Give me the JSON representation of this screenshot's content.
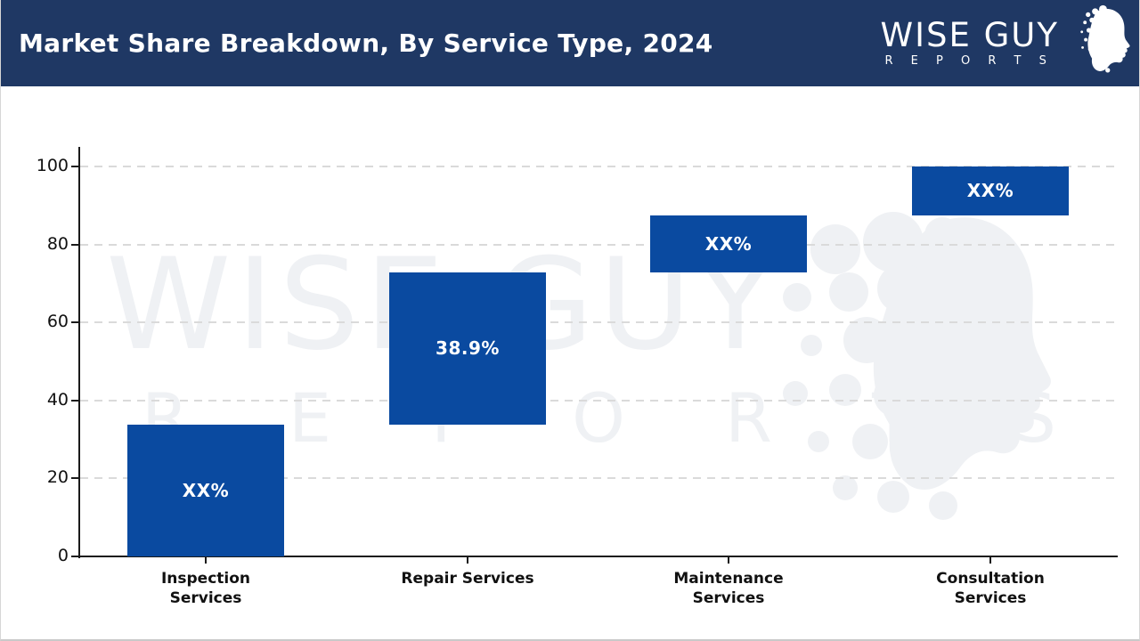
{
  "header": {
    "title": "Market Share Breakdown, By Service Type, 2024",
    "logo": {
      "wordmark": "WISE GUY",
      "subtitle": "R E P O R T S"
    }
  },
  "watermark": {
    "wordmark": "WISE GUY",
    "subtitle": "R E P O R T S"
  },
  "chart_data": {
    "type": "bar",
    "subtype": "waterfall",
    "title": "Market Share Breakdown, By Service Type, 2024",
    "unit": "%",
    "categories": [
      "Inspection Services",
      "Repair Services",
      "Maintenance Services",
      "Consultation Services"
    ],
    "category_label_lines": [
      [
        "Inspection",
        "Services"
      ],
      [
        "Repair Services"
      ],
      [
        "Maintenance",
        "Services"
      ],
      [
        "Consultation",
        "Services"
      ]
    ],
    "segments": [
      {
        "category": "Inspection Services",
        "start": 0,
        "end": 33.9,
        "value_label": "XX%"
      },
      {
        "category": "Repair Services",
        "start": 33.9,
        "end": 72.8,
        "value": 38.9,
        "value_label": "38.9%"
      },
      {
        "category": "Maintenance Services",
        "start": 72.8,
        "end": 87.5,
        "value_label": "XX%"
      },
      {
        "category": "Consultation Services",
        "start": 87.5,
        "end": 100,
        "value_label": "XX%"
      }
    ],
    "ylim": [
      0,
      100
    ],
    "yticks": [
      0,
      20,
      40,
      60,
      80,
      100
    ],
    "grid": "horizontal-dashed",
    "legend": false,
    "colors": {
      "bar": "#0a4aa0",
      "header_background": "#1f3864",
      "grid": "#dadada",
      "axis": "#1a1a1a",
      "value_label": "#ffffff",
      "watermark": "#eff1f4"
    }
  }
}
